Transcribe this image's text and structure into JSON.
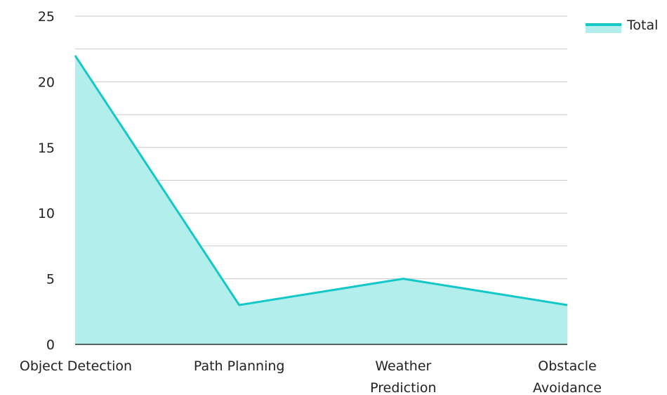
{
  "chart_data": {
    "type": "area",
    "categories": [
      "Object Detection",
      "Path Planning",
      "Weather Prediction",
      "Obstacle Avoidance"
    ],
    "category_lines": [
      [
        "Object Detection"
      ],
      [
        "Path Planning"
      ],
      [
        "Weather",
        "Prediction"
      ],
      [
        "Obstacle",
        "Avoidance"
      ]
    ],
    "series": [
      {
        "name": "Total",
        "values": [
          22,
          3,
          5,
          3
        ],
        "color": "#14c8c8",
        "fill": "#b2efec"
      }
    ],
    "yticks": [
      0,
      5,
      10,
      15,
      20,
      25
    ],
    "ylim": [
      0,
      25
    ],
    "grid": true,
    "legend_position": "top-right",
    "axis_color": "#333333",
    "grid_color": "#c8c8c8"
  }
}
